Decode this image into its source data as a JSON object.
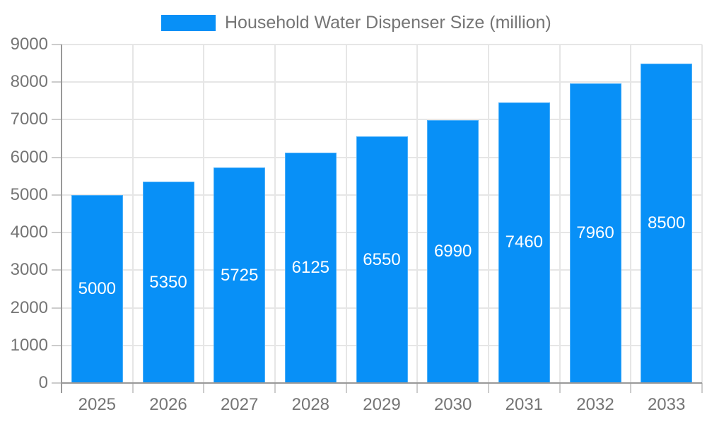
{
  "chart_data": {
    "type": "bar",
    "title": "Household Water Dispenser Size (million)",
    "categories": [
      "2025",
      "2026",
      "2027",
      "2028",
      "2029",
      "2030",
      "2031",
      "2032",
      "2033"
    ],
    "series": [
      {
        "name": "Household Water Dispenser Size (million)",
        "values": [
          5000,
          5350,
          5725,
          6125,
          6550,
          6990,
          7460,
          7960,
          8500
        ]
      }
    ],
    "xlabel": "",
    "ylabel": "",
    "ylim": [
      0,
      9000
    ],
    "ytick_step": 1000,
    "yticks": [
      0,
      1000,
      2000,
      3000,
      4000,
      5000,
      6000,
      7000,
      8000,
      9000
    ],
    "grid": true,
    "legend_position": "top",
    "value_labels": "inside-center",
    "colors": {
      "bar": "#0890f7",
      "value_label": "#ffffff",
      "axis_text": "#757575",
      "grid": "#e6e6e6",
      "tick": "#cccccc",
      "axis_line": "#999999",
      "background": "#ffffff"
    }
  }
}
